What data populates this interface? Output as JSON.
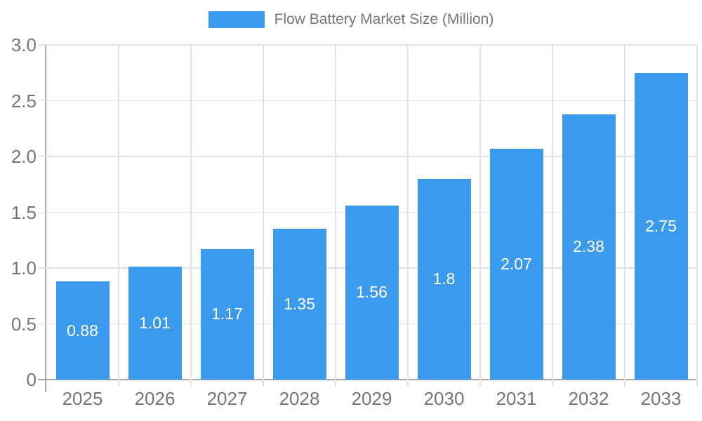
{
  "chart_data": {
    "type": "bar",
    "title": "Flow Battery Market Size (Million)",
    "legend": {
      "label": "Flow Battery Market Size (Million)",
      "position": "top"
    },
    "categories": [
      "2025",
      "2026",
      "2027",
      "2028",
      "2029",
      "2030",
      "2031",
      "2032",
      "2033"
    ],
    "values": [
      0.88,
      1.01,
      1.17,
      1.35,
      1.56,
      1.8,
      2.07,
      2.38,
      2.75
    ],
    "value_labels": [
      "0.88",
      "1.01",
      "1.17",
      "1.35",
      "1.56",
      "1.8",
      "2.07",
      "2.38",
      "2.75"
    ],
    "xlabel": "",
    "ylabel": "",
    "ylim": [
      0,
      3.0
    ],
    "yticks": [
      {
        "value": 0,
        "label": "0"
      },
      {
        "value": 0.5,
        "label": "0.5"
      },
      {
        "value": 1.0,
        "label": "1.0"
      },
      {
        "value": 1.5,
        "label": "1.5"
      },
      {
        "value": 2.0,
        "label": "2.0"
      },
      {
        "value": 2.5,
        "label": "2.5"
      },
      {
        "value": 3.0,
        "label": "3.0"
      }
    ],
    "grid": true,
    "colors": {
      "bar": "#3B99EE",
      "grid": "#E2E2E2",
      "axis": "#A8A8A8",
      "tick_label": "#757575",
      "value_label": "#FFFFFF"
    }
  }
}
